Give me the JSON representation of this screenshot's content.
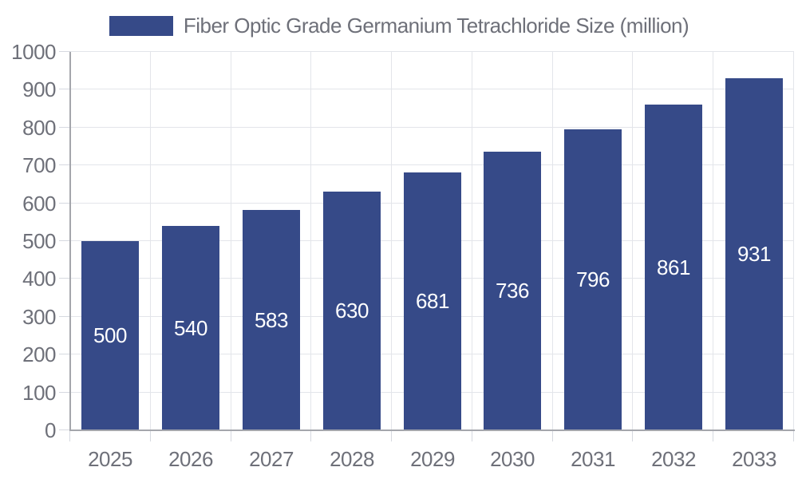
{
  "chart_data": {
    "type": "bar",
    "title": "Fiber Optic Grade Germanium Tetrachloride Size (million)",
    "legend": [
      "Fiber Optic Grade Germanium Tetrachloride Size (million)"
    ],
    "legend_position": "top-center",
    "categories": [
      "2025",
      "2026",
      "2027",
      "2028",
      "2029",
      "2030",
      "2031",
      "2032",
      "2033"
    ],
    "values": [
      500,
      540,
      583,
      630,
      681,
      736,
      796,
      861,
      931
    ],
    "xlabel": "",
    "ylabel": "",
    "ylim": [
      0,
      1000
    ],
    "y_ticks": [
      0,
      100,
      200,
      300,
      400,
      500,
      600,
      700,
      800,
      900,
      1000
    ],
    "grid": true,
    "bar_value_labels": "inside-center",
    "colors": {
      "bar": "#364a88",
      "grid_line": "#e3e5ea",
      "axis_line": "#a4a6ac",
      "tick_line": "#d6d9e0",
      "axis_text": "#6e7079",
      "legend_text": "#6e7079",
      "value_label_text": "#ffffff",
      "background": "#ffffff"
    }
  }
}
